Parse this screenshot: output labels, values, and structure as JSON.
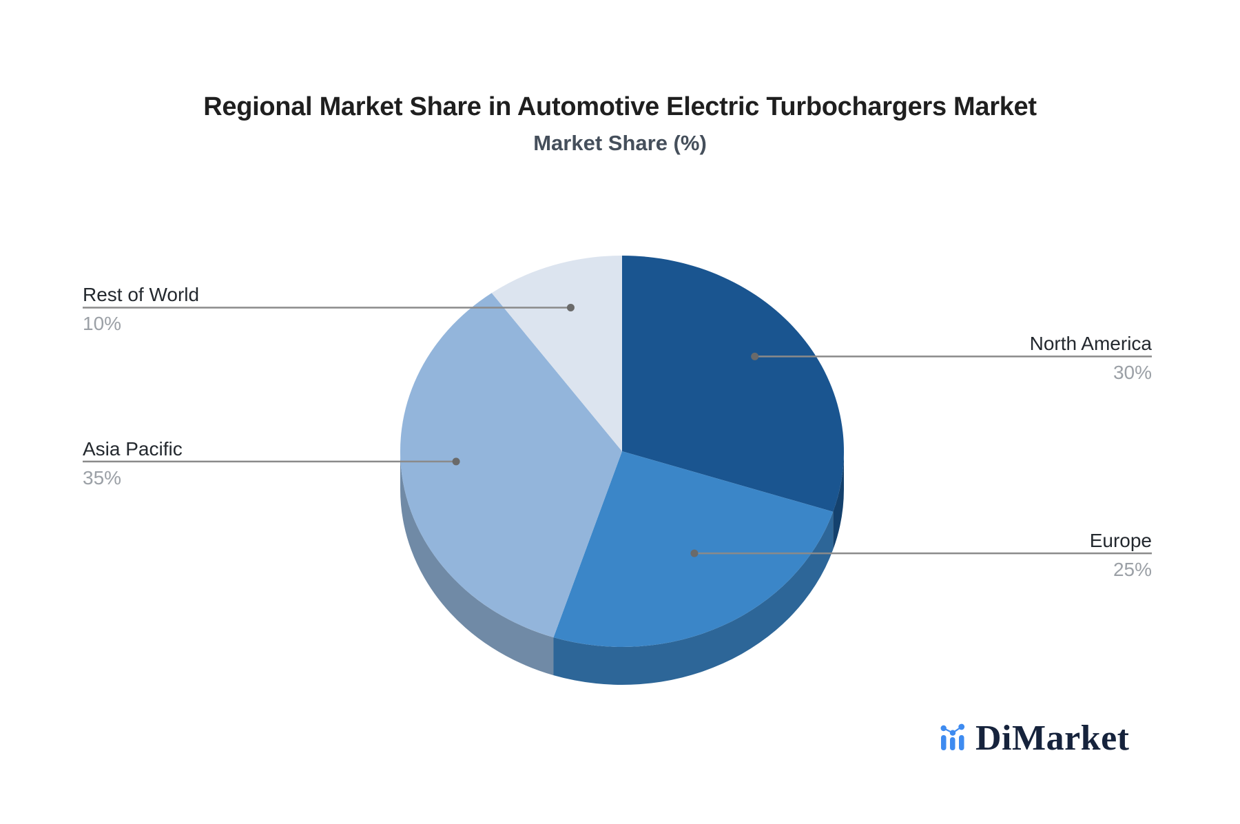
{
  "title": "Regional Market Share in Automotive Electric Turbochargers Market",
  "subtitle": "Market Share (%)",
  "chart_data": {
    "type": "pie",
    "style": "3d",
    "title": "Regional Market Share in Automotive Electric Turbochargers Market",
    "subtitle": "Market Share (%)",
    "unit": "%",
    "start_angle_deg": -90,
    "direction": "clockwise",
    "legend": "none",
    "data_labels": "callout-lines",
    "slices": [
      {
        "label": "North America",
        "value": 30,
        "pct": "30%",
        "color": "#1A5590",
        "callout_side": "right"
      },
      {
        "label": "Europe",
        "value": 25,
        "pct": "25%",
        "color": "#3B86C8",
        "callout_side": "right"
      },
      {
        "label": "Asia Pacific",
        "value": 35,
        "pct": "35%",
        "color": "#93B5DB",
        "callout_side": "left"
      },
      {
        "label": "Rest of World",
        "value": 10,
        "pct": "10%",
        "color": "#DCE4EF",
        "callout_side": "left"
      }
    ]
  },
  "colors": {
    "background": "#FFFFFF",
    "title": "#1F1F1F",
    "subtitle": "#454F5B",
    "callout_label": "#23282E",
    "callout_pct": "#9BA0A6",
    "leader_line": "#8A8A8A",
    "leader_dot": "#6A6A6A",
    "logo_text": "#16233C",
    "logo_icon": "#3E8BF0"
  },
  "logo": {
    "text": "DiMarket",
    "icon": "bar-line-chart-icon"
  }
}
